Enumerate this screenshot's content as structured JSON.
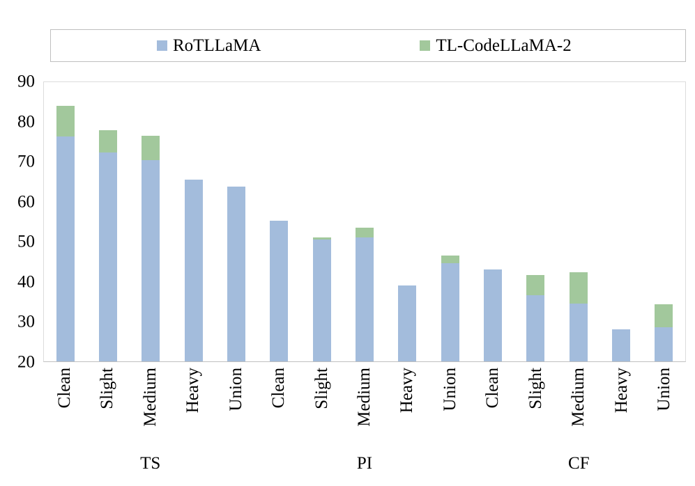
{
  "chart_data": {
    "type": "bar",
    "stacked": true,
    "legend_position": "top",
    "grid": false,
    "categories": [
      "Clean",
      "Slight",
      "Medium",
      "Heavy",
      "Union",
      "Clean",
      "Slight",
      "Medium",
      "Heavy",
      "Union",
      "Clean",
      "Slight",
      "Medium",
      "Heavy",
      "Union"
    ],
    "group_labels": [
      "TS",
      "PI",
      "CF"
    ],
    "series": [
      {
        "name": "RoTLLaMA",
        "color": "#a3bcdc",
        "values": [
          76.3,
          72.3,
          70.4,
          65.5,
          63.9,
          55.2,
          50.6,
          51.1,
          39.0,
          44.7,
          43.0,
          36.5,
          34.5,
          28.1,
          28.6
        ]
      },
      {
        "name": "TL-CodeLLaMA-2",
        "color": "#a2c89c",
        "values": [
          7.7,
          5.6,
          6.1,
          0,
          0,
          0,
          0.5,
          2.5,
          0,
          1.9,
          0,
          5.1,
          7.9,
          0,
          5.8
        ]
      }
    ],
    "ylim": [
      20,
      90
    ],
    "yticks": [
      20,
      30,
      40,
      50,
      60,
      70,
      80,
      90
    ]
  }
}
